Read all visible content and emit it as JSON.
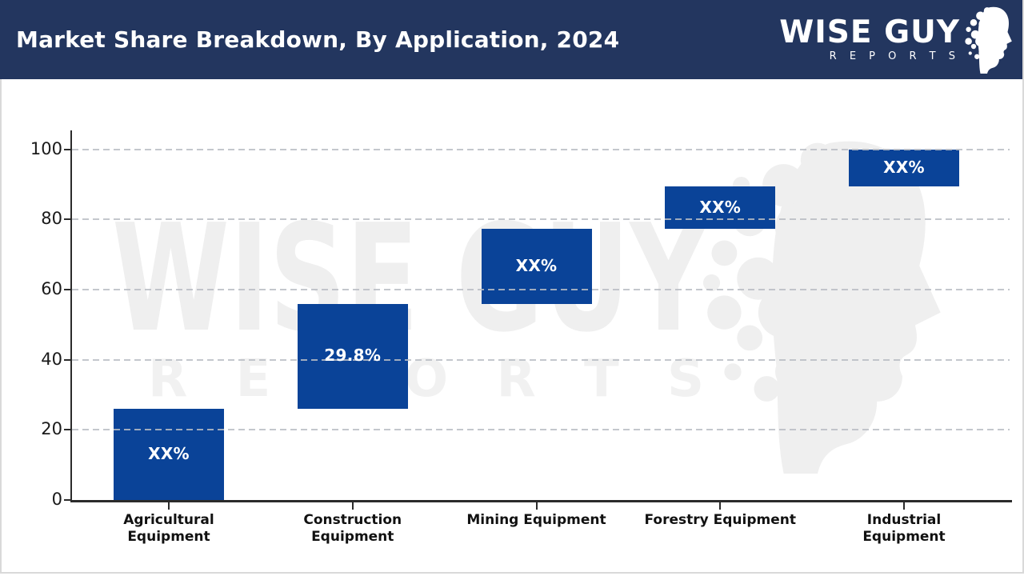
{
  "page": {
    "bg": "#ffffff",
    "border_color": "#d9d9d9"
  },
  "header": {
    "bg": "#23365f",
    "title": "Market Share Breakdown, By Application, 2024",
    "logo": {
      "name": "WISE GUY",
      "sub": "R E P O R T S"
    }
  },
  "watermark": {
    "big": "WISE GUY",
    "sub": "R E P O R T S"
  },
  "chart_data": {
    "type": "bar",
    "variant": "waterfall",
    "title": "Market Share Breakdown, By Application, 2024",
    "unit": "percent",
    "categories": [
      "Agricultural Equipment",
      "Construction Equipment",
      "Mining Equipment",
      "Forestry Equipment",
      "Industrial Equipment"
    ],
    "category_label_lines": [
      [
        "Agricultural",
        "Equipment"
      ],
      [
        "Construction",
        "Equipment"
      ],
      [
        "Mining Equipment"
      ],
      [
        "Forestry Equipment"
      ],
      [
        "Industrial",
        "Equipment"
      ]
    ],
    "series": [
      {
        "name": "Market share",
        "starts": [
          0,
          26.1,
          55.9,
          77.3,
          89.3
        ],
        "values": [
          26.1,
          29.8,
          21.4,
          12.0,
          10.7
        ],
        "labels": [
          "XX%",
          "29.8%",
          "XX%",
          "XX%",
          "XX%"
        ]
      }
    ],
    "y_ticks": [
      0,
      20,
      40,
      60,
      80,
      100
    ],
    "ylim": [
      0,
      105
    ],
    "xlabel": "",
    "ylabel": "",
    "grid": "horizontal-dashed",
    "legend": "none",
    "bar_color": "#0a4398",
    "bar_label_color": "#ffffff",
    "grid_color": "#c9c9c9",
    "axis_color": "#2b2b2b"
  }
}
